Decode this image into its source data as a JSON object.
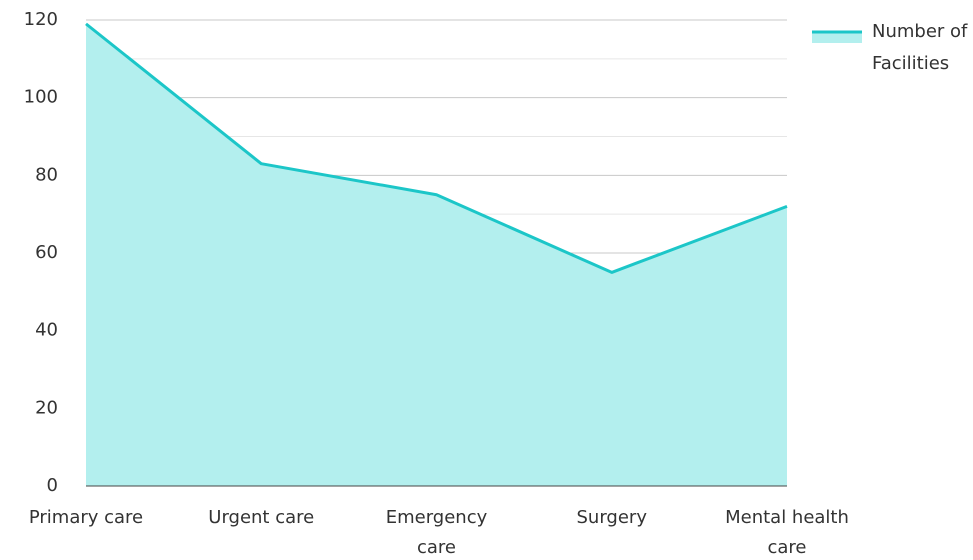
{
  "chart_data": {
    "type": "area",
    "categories": [
      "Primary care",
      "Urgent care",
      "Emergency care",
      "Surgery",
      "Mental health care"
    ],
    "series": [
      {
        "name": "Number of Facilities",
        "color": "#1cc6c8",
        "fill": "#b3efee",
        "values": [
          119,
          83,
          75,
          55,
          72
        ]
      }
    ],
    "ylim": [
      0,
      120
    ],
    "yticks": [
      0,
      20,
      40,
      60,
      80,
      100,
      120
    ],
    "grid": true,
    "legend": "top-right"
  }
}
